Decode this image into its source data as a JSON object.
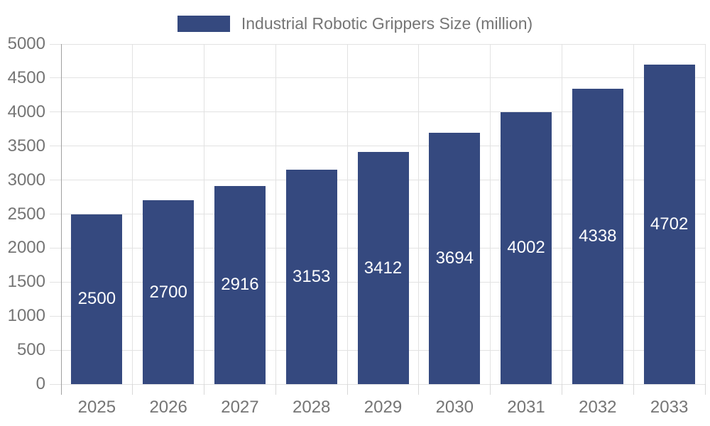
{
  "legend": {
    "label": "Industrial Robotic Grippers Size (million)"
  },
  "chart_data": {
    "type": "bar",
    "title": "Industrial Robotic Grippers Size (million)",
    "series_name": "Industrial Robotic Grippers Size (million)",
    "categories": [
      "2025",
      "2026",
      "2027",
      "2028",
      "2029",
      "2030",
      "2031",
      "2032",
      "2033"
    ],
    "values": [
      2500,
      2700,
      2916,
      3153,
      3412,
      3694,
      4002,
      4338,
      4702
    ],
    "bar_labels": [
      "2500",
      "2700",
      "2916",
      "3153",
      "3412",
      "3694",
      "4002",
      "4338",
      "4702"
    ],
    "xlabel": "",
    "ylabel": "",
    "ylim": [
      0,
      5000
    ],
    "y_ticks": [
      0,
      500,
      1000,
      1500,
      2000,
      2500,
      3000,
      3500,
      4000,
      4500,
      5000
    ],
    "grid": true,
    "legend_position": "top",
    "colors": {
      "bar": "#35497F",
      "bar_label_text": "#FFFFFF",
      "axis_text": "#757575",
      "gridline": "#E2E2E2",
      "axis_line": "#A0A0A0",
      "tick_line": "#D8D8D8"
    }
  }
}
